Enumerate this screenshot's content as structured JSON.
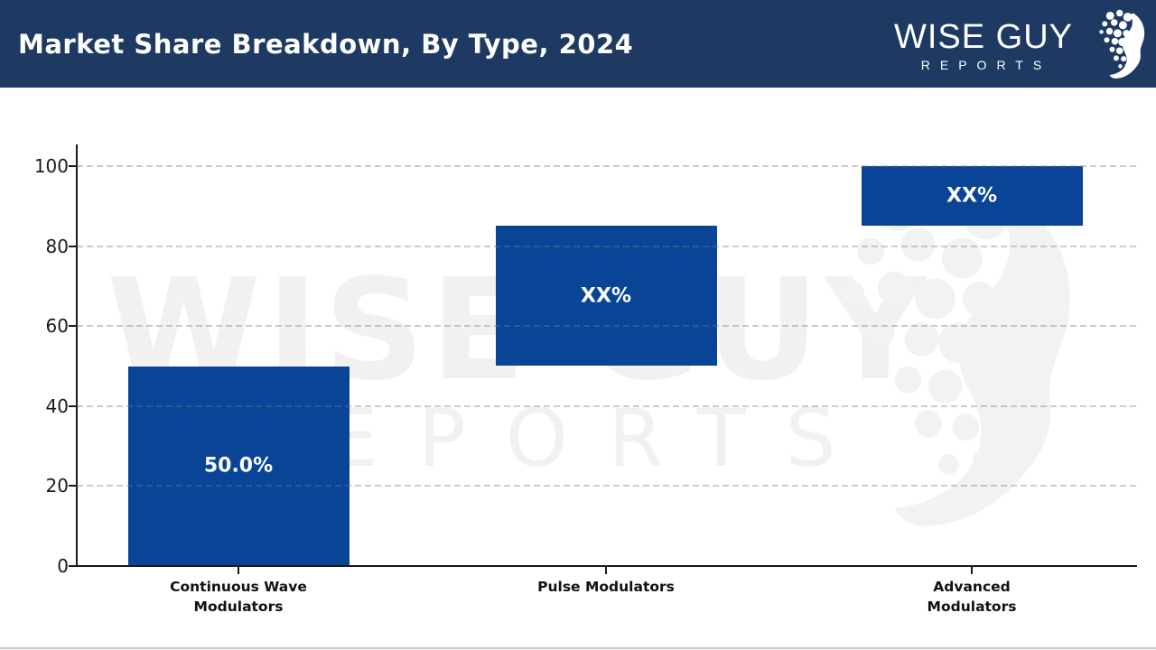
{
  "header": {
    "title": "Market Share Breakdown, By Type, 2024",
    "logo_line1": "WISE GUY",
    "logo_line2": "REPORTS"
  },
  "watermark": {
    "line1": "WISE GUY",
    "line2": "REPORTS"
  },
  "colors": {
    "header_bg": "#1e3a63",
    "bar": "#0a4496",
    "grid": "#d2d2d2",
    "axis": "#1a1a1a",
    "watermark": "#f1f1f1"
  },
  "chart_data": {
    "type": "bar",
    "variant": "waterfall",
    "title": "Market Share Breakdown, By Type, 2024",
    "categories": [
      "Continuous Wave\nModulators",
      "Pulse Modulators",
      "Advanced\nModulators"
    ],
    "segments": [
      {
        "category": "Continuous Wave Modulators",
        "start": 0,
        "end": 50,
        "label": "50.0%"
      },
      {
        "category": "Pulse Modulators",
        "start": 50,
        "end": 85,
        "label": "XX%"
      },
      {
        "category": "Advanced Modulators",
        "start": 85,
        "end": 100,
        "label": "XX%"
      }
    ],
    "yticks": [
      0,
      20,
      40,
      60,
      80,
      100
    ],
    "ylim": [
      0,
      105
    ],
    "xlabel": "",
    "ylabel": "",
    "grid": "dashed-horizontal",
    "legend": "none"
  }
}
